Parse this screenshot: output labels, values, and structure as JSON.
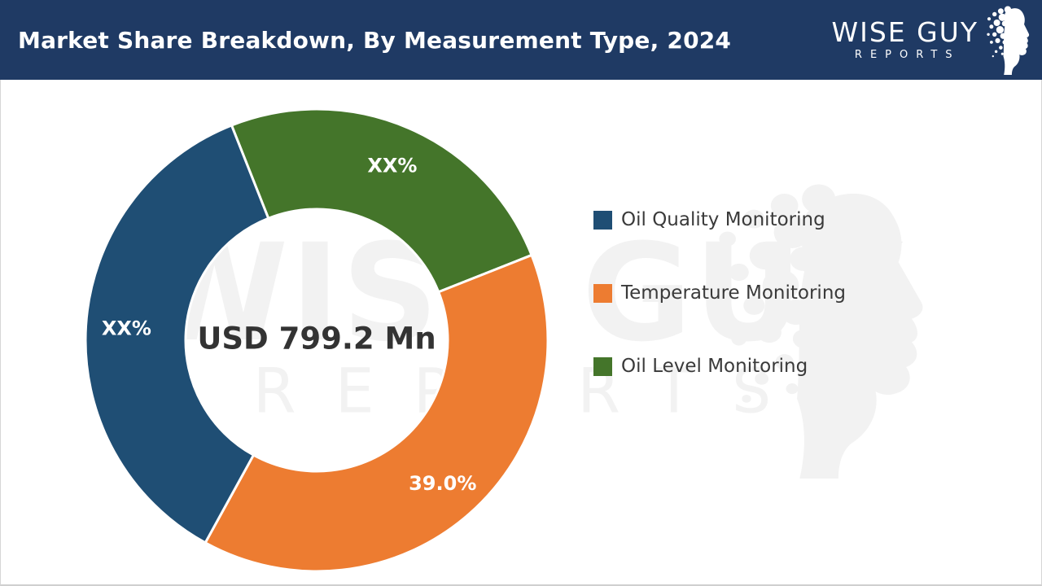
{
  "header": {
    "title": "Market Share Breakdown, By Measurement Type, 2024",
    "bg_color": "#1F3A64",
    "logo": {
      "line1": "WISE GUY",
      "line2": "REPORTS"
    }
  },
  "chart_data": {
    "type": "donut",
    "title": "Market Share Breakdown, By Measurement Type, 2024",
    "center_label": "USD 799.2 Mn",
    "start_angle_deg": -21.6,
    "outer_radius": 284,
    "inner_radius": 161,
    "label_radius": 234,
    "slices": [
      {
        "name": "Oil Level Monitoring",
        "value_pct": 25,
        "label": "XX%",
        "color": "#44752A"
      },
      {
        "name": "Temperature Monitoring",
        "value_pct": 39,
        "label": "39.0%",
        "color": "#ED7C31"
      },
      {
        "name": "Oil Quality Monitoring",
        "value_pct": 36,
        "label": "XX%",
        "color": "#1F4E74"
      }
    ],
    "legend_position": "right",
    "annotations": [
      "XX%",
      "39.0%",
      "XX%"
    ]
  },
  "legend": {
    "items": [
      {
        "label": "Oil Quality Monitoring",
        "color": "#1F4E74"
      },
      {
        "label": "Temperature Monitoring",
        "color": "#ED7C31"
      },
      {
        "label": "Oil Level Monitoring",
        "color": "#44752A"
      }
    ]
  },
  "watermark": {
    "line1": "WISE GUY",
    "line2": "REPORTS",
    "color": "#F2F2F2"
  },
  "colors": {
    "header_bg": "#1F3A64",
    "title_text": "#FFFFFF",
    "center_text": "#333333",
    "legend_text": "#3A3A3A",
    "separator": "#FFFFFF"
  }
}
